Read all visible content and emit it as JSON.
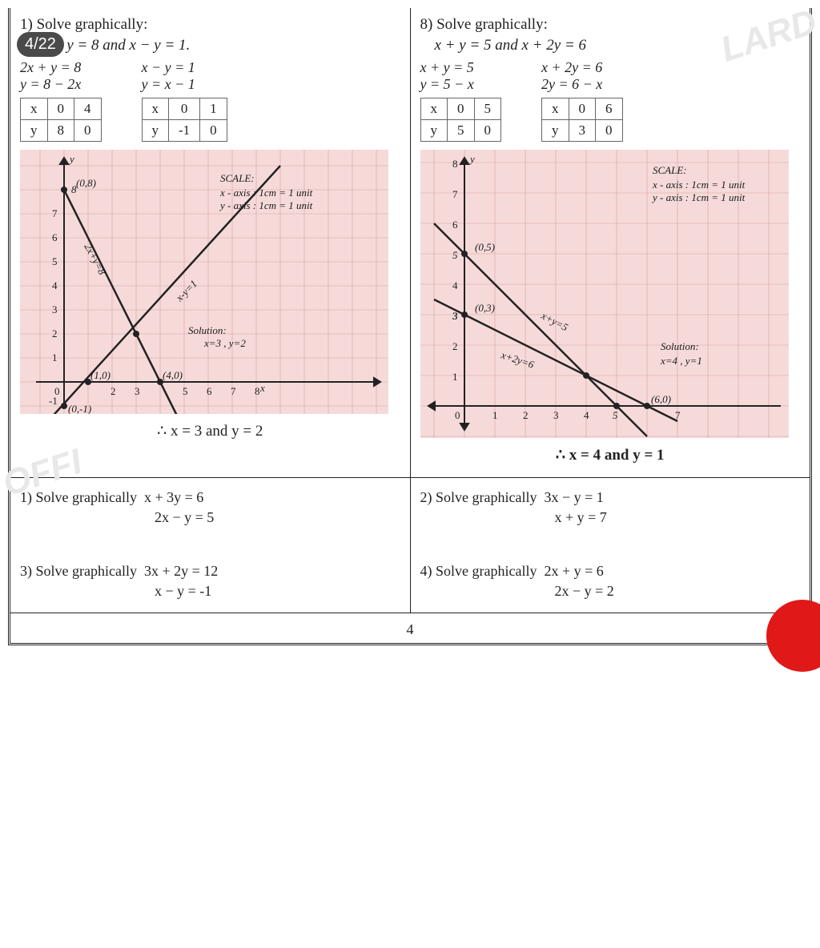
{
  "page_number": "4",
  "badge": "4/22",
  "watermarks": {
    "top": "LARD",
    "bottom": "OFFI"
  },
  "q7": {
    "title": "1) Solve graphically:",
    "given": "2x + y = 8  and  x − y = 1.",
    "left": {
      "l1": "2x + y = 8",
      "l2": "y = 8 − 2x",
      "table": {
        "head": "x",
        "x": [
          "0",
          "4"
        ],
        "yhead": "y",
        "y": [
          "8",
          "0"
        ]
      }
    },
    "right": {
      "l1": "x − y = 1",
      "l2": "y = x − 1",
      "table": {
        "head": "x",
        "x": [
          "0",
          "1"
        ],
        "yhead": "y",
        "y": [
          "-1",
          "0"
        ]
      }
    },
    "graph": {
      "scale_title": "SCALE:",
      "scale_x": "x - axis : 1cm = 1 unit",
      "scale_y": "y - axis : 1cm = 1 unit",
      "line_a_label": "2x+y=8",
      "line_b_label": "x-y=1",
      "sol_label": "Solution:",
      "sol_text": "x=3 , y=2",
      "pt08": "(0,8)",
      "pt40": "(4,0)",
      "pt10": "(1,0)",
      "pt0m1": "(0,-1)",
      "bg_color": "#f6dada",
      "grid_color": "#d8a0a0",
      "axis_color": "#222",
      "line_color": "#222"
    },
    "answer": "∴ x = 3 and y = 2"
  },
  "q8": {
    "title": "8) Solve graphically:",
    "given": "x + y = 5 and x + 2y = 6",
    "left": {
      "l1": "x + y = 5",
      "l2": "y = 5 − x",
      "table": {
        "head": "x",
        "x": [
          "0",
          "5"
        ],
        "yhead": "y",
        "y": [
          "5",
          "0"
        ]
      }
    },
    "right": {
      "l1": "x + 2y = 6",
      "l2": "2y = 6 − x",
      "table": {
        "head": "x",
        "x": [
          "0",
          "6"
        ],
        "yhead": "y",
        "y": [
          "3",
          "0"
        ]
      }
    },
    "graph": {
      "scale_title": "SCALE:",
      "scale_x": "x - axis : 1cm = 1 unit",
      "scale_y": "y - axis : 1cm = 1 unit",
      "line_a_label": "x+y=5",
      "line_b_label": "x+2y=6",
      "sol_label": "Solution:",
      "sol_text": "x=4 , y=1",
      "pt05": "(0,5)",
      "pt03": "(0,3)",
      "pt60": "(6,0)",
      "bg_color": "#f6dada",
      "grid_color": "#d8a0a0",
      "axis_color": "#222",
      "line_color": "#222"
    },
    "answer": "∴ x = 4 and y = 1"
  },
  "hw": {
    "q1": {
      "title": "1) Solve graphically",
      "e1": "x + 3y = 6",
      "e2": "2x − y = 5"
    },
    "q2": {
      "title": "2) Solve graphically",
      "e1": "3x − y = 1",
      "e2": "x + y = 7"
    },
    "q3": {
      "title": "3) Solve graphically",
      "e1": "3x + 2y = 12",
      "e2": "x − y = -1"
    },
    "q4": {
      "title": "4) Solve graphically",
      "e1": "2x + y = 6",
      "e2": "2x − y = 2"
    }
  }
}
